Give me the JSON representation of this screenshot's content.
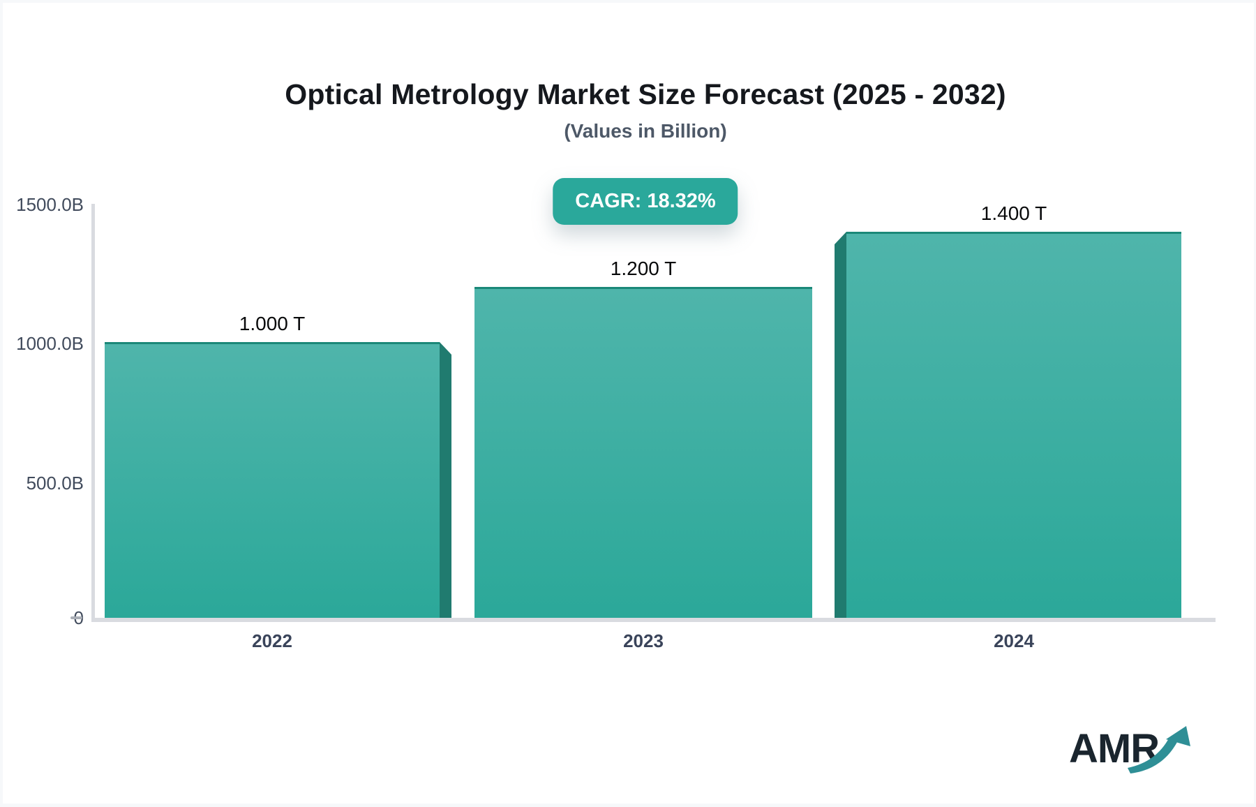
{
  "header": {
    "title": "Optical Metrology Market Size Forecast (2025 - 2032)",
    "subtitle": "(Values in Billion)"
  },
  "badge": {
    "label": "CAGR: 18.32%"
  },
  "chart_data": {
    "type": "bar",
    "title": "Optical Metrology Market Size Forecast (2025 - 2032)",
    "subtitle": "(Values in Billion)",
    "unit": "Billion",
    "categories": [
      "2022",
      "2023",
      "2024"
    ],
    "values": [
      1000,
      1200,
      1400
    ],
    "value_labels": [
      "1.000 T",
      "1.200 T",
      "1.400 T"
    ],
    "ylim": [
      0,
      1500
    ],
    "ytick_labels": [
      "0",
      "500.0B",
      "1000.0B",
      "1500.0B"
    ],
    "grid": false,
    "legend": false,
    "annotation": "CAGR: 18.32%",
    "bar_style": "3d-gradient"
  },
  "colors": {
    "badge_bg": "#2aa89b",
    "bar_top": "#4fb5ab",
    "bar_bottom": "#2ba899",
    "bar_side": "#207b6f",
    "bar_edge": "#1b8878",
    "axis_line": "#d9dbe0",
    "logo_text": "#1a252e",
    "logo_arrow": "#2f8f96"
  },
  "logo": {
    "text": "AMR"
  }
}
